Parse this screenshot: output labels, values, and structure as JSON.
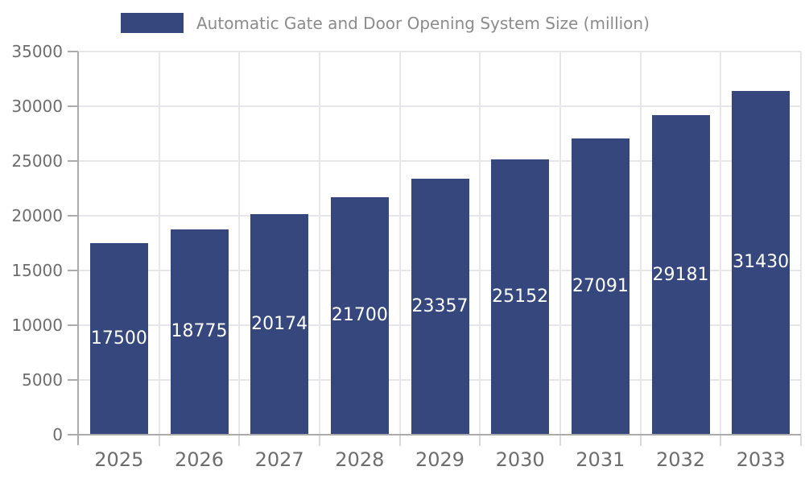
{
  "legend": {
    "label": "Automatic Gate and Door Opening System Size (million)"
  },
  "chart_data": {
    "type": "bar",
    "title": "Automatic Gate and Door Opening System Size (million)",
    "categories": [
      "2025",
      "2026",
      "2027",
      "2028",
      "2029",
      "2030",
      "2031",
      "2032",
      "2033"
    ],
    "values": [
      17500,
      18775,
      20174,
      21700,
      23357,
      25152,
      27091,
      29181,
      31430
    ],
    "series_name": "Automatic Gate and Door Opening System Size (million)",
    "xlabel": "",
    "ylabel": "",
    "ylim": [
      0,
      35000
    ],
    "yticks": [
      0,
      5000,
      10000,
      15000,
      20000,
      25000,
      30000,
      35000
    ],
    "grid": true,
    "legend_position": "top",
    "bar_color": "#35477d",
    "value_label_color": "#ffffff",
    "colors": {
      "grid_line": "#e7e7eb",
      "axis_spine": "#ababab",
      "tick_label": "#6d6d6d",
      "legend_text": "#8b8b8b"
    }
  }
}
